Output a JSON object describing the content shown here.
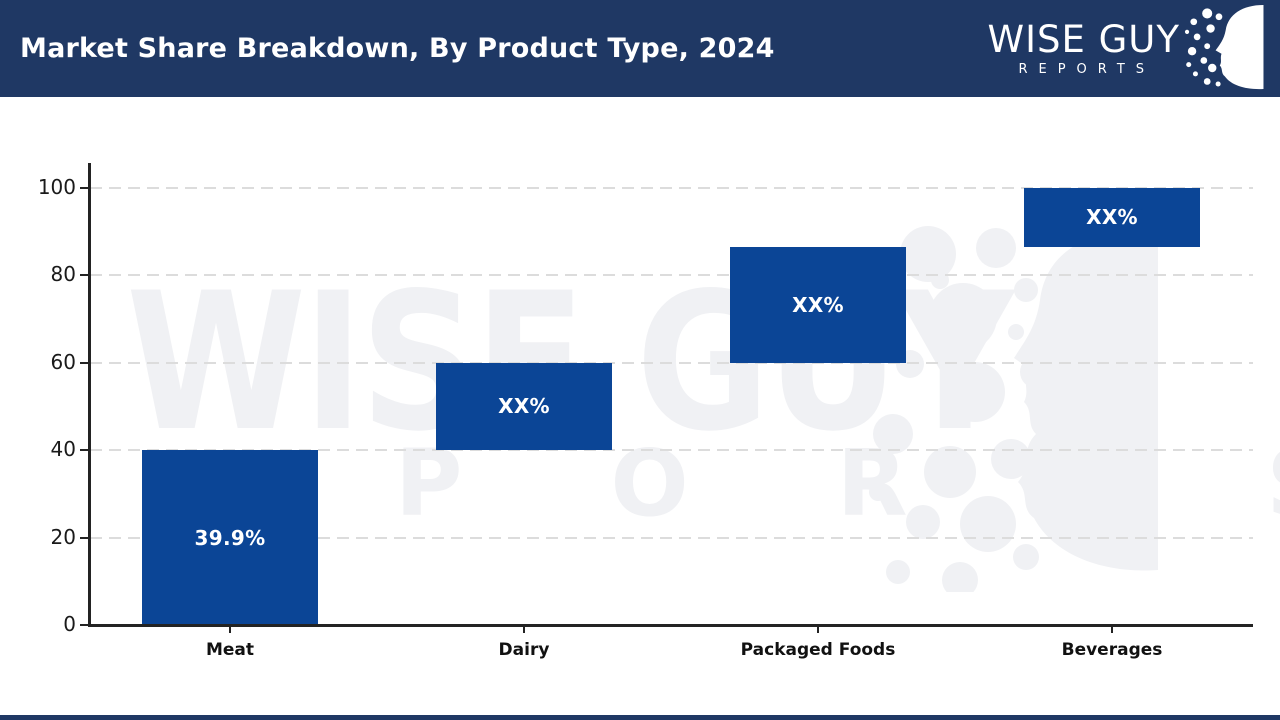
{
  "header": {
    "title": "Market Share Breakdown, By Product Type, 2024",
    "bg_color": "#1F3864",
    "text_color": "#FFFFFF",
    "brand": {
      "name": "WISE GUY",
      "sub": "REPORTS",
      "logo_icon": "face-dots-icon"
    }
  },
  "watermark": {
    "line1": "WISE GUY",
    "line2": "P O R T S",
    "icon": "face-dots-watermark",
    "color": "#f0f1f4"
  },
  "chart_data": {
    "type": "bar",
    "subtype": "waterfall",
    "title": "Market Share Breakdown, By Product Type, 2024",
    "categories": [
      "Meat",
      "Dairy",
      "Packaged Foods",
      "Beverages"
    ],
    "segments": [
      {
        "category": "Meat",
        "start": 0,
        "end": 39.9,
        "label": "39.9%"
      },
      {
        "category": "Dairy",
        "start": 39.9,
        "end": 60,
        "label": "XX%"
      },
      {
        "category": "Packaged Foods",
        "start": 60,
        "end": 86.5,
        "label": "XX%"
      },
      {
        "category": "Beverages",
        "start": 86.5,
        "end": 100,
        "label": "XX%"
      }
    ],
    "ylim": [
      0,
      100
    ],
    "yticks": [
      0,
      20,
      40,
      60,
      80,
      100
    ],
    "grid": "dashed-horizontal",
    "legend": "none",
    "bar_color": "#0B4596",
    "label_color": "#FFFFFF",
    "axis_color": "#232323",
    "gridline_color": "#dcdcdc"
  }
}
